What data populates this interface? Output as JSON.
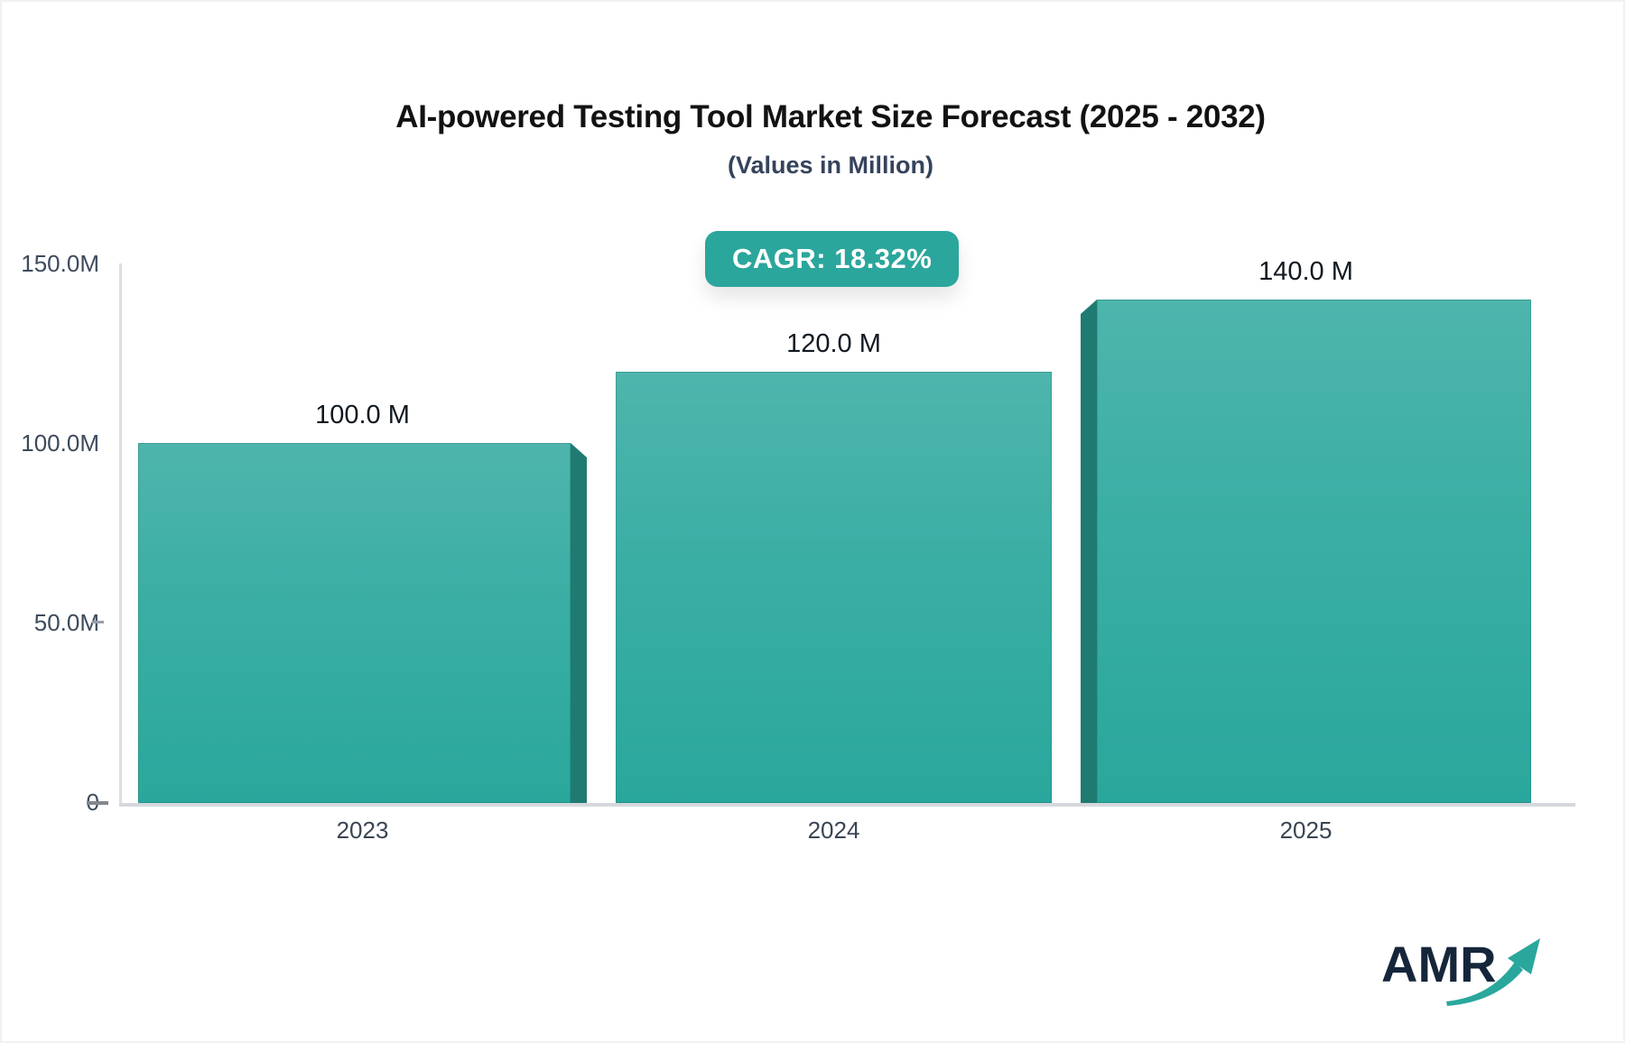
{
  "title": "AI-powered Testing Tool Market Size Forecast (2025 - 2032)",
  "subtitle": "(Values in Million)",
  "cagr_badge": "CAGR: 18.32%",
  "chart_data": {
    "type": "bar",
    "title": "AI-powered Testing Tool Market Size Forecast (2025 - 2032)",
    "subtitle": "(Values in Million)",
    "unit": "Million",
    "cagr_percent": "18.32%",
    "categories": [
      "2023",
      "2024",
      "2025"
    ],
    "values": [
      100.0,
      120.0,
      140.0
    ],
    "value_labels": [
      "100.0 M",
      "120.0 M",
      "140.0 M"
    ],
    "ytick_labels": [
      "150.0M",
      "100.0M",
      "50.0M",
      "0"
    ],
    "ytick_values": [
      150,
      100,
      50,
      0
    ],
    "ylim": [
      0,
      150
    ],
    "xlabel": "",
    "ylabel": "",
    "grid": false,
    "legend": false,
    "bar_style": "3d-beveled"
  },
  "branding": {
    "logo_text": "AMR",
    "logo_icon": "growth-arrow-icon"
  },
  "colors": {
    "bar_gradient_top": "#4eb5ac",
    "bar_gradient_bottom": "#2aa79c",
    "bar_side_shadow": "#1f7b72",
    "badge_background": "#2ba69c",
    "badge_text": "#ffffff",
    "title_text": "#121212",
    "subtitle_text": "#35435c",
    "axis_line": "#dcdee3",
    "tick_text": "#3d4b5c",
    "value_label_text": "#101820",
    "logo_navy": "#15263b",
    "logo_arrow": "#2aa79c"
  }
}
